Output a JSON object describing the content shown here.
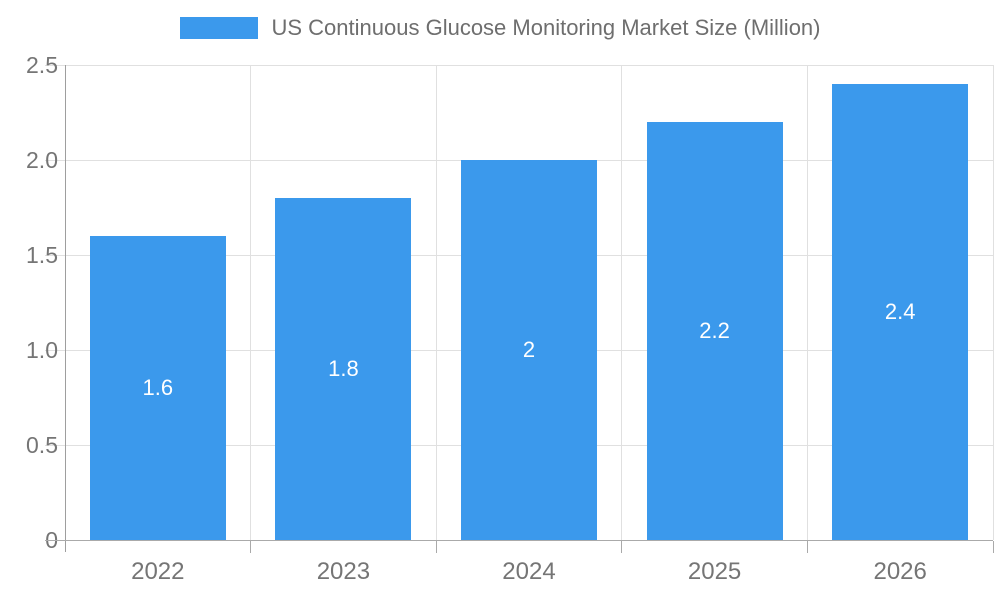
{
  "legend": {
    "label": "US Continuous Glucose Monitoring Market Size (Million)"
  },
  "colors": {
    "bar": "#3B99EC",
    "grid": "#E0E0E0",
    "axis": "#AAAAAA",
    "axis_strong": "#9E9E9E",
    "tick_label": "#757575",
    "legend_text": "#6E6E6E",
    "bar_label": "#FFFFFF",
    "background": "#FFFFFF"
  },
  "chart_data": {
    "type": "bar",
    "title": "US Continuous Glucose Monitoring Market Size (Million)",
    "categories": [
      "2022",
      "2023",
      "2024",
      "2025",
      "2026"
    ],
    "values": [
      1.6,
      1.8,
      2,
      2.2,
      2.4
    ],
    "value_labels": [
      "1.6",
      "1.8",
      "2",
      "2.2",
      "2.4"
    ],
    "xlabel": "",
    "ylabel": "",
    "ylim": [
      0,
      2.5
    ],
    "y_ticks": [
      0,
      0.5,
      1.0,
      1.5,
      2.0,
      2.5
    ],
    "y_tick_labels": [
      "0",
      "0.5",
      "1.0",
      "1.5",
      "2.0",
      "2.5"
    ],
    "grid": true,
    "legend_position": "top-center",
    "bar_color": "#3B99EC",
    "value_label_position": "inside-center"
  }
}
